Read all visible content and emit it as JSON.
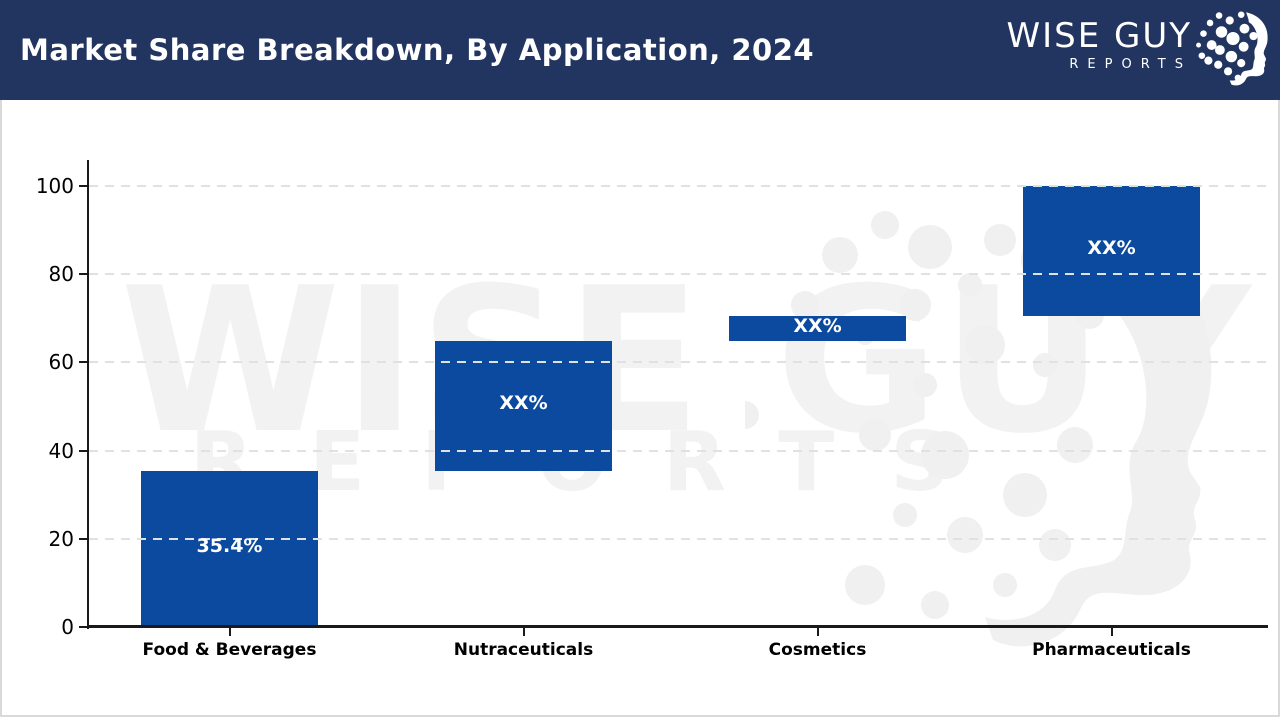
{
  "header": {
    "title": "Market Share Breakdown, By Application, 2024",
    "bg_color": "#223460",
    "logo": {
      "line1": "WISE GUY",
      "line2": "REPORTS"
    }
  },
  "watermark": {
    "line1": "WISE GUY",
    "line2": "REPORTS"
  },
  "chart_data": {
    "type": "bar",
    "subtype": "waterfall",
    "title": "Market Share Breakdown, By Application, 2024",
    "categories": [
      "Food & Beverages",
      "Nutraceuticals",
      "Cosmetics",
      "Pharmaceuticals"
    ],
    "segments": [
      {
        "category": "Food & Beverages",
        "start": 0,
        "end": 35.4,
        "value": 35.4,
        "label": "35.4%"
      },
      {
        "category": "Nutraceuticals",
        "start": 35.4,
        "end": 64.8,
        "value": 29.4,
        "label": "XX%"
      },
      {
        "category": "Cosmetics",
        "start": 64.8,
        "end": 70.5,
        "value": 5.7,
        "label": "XX%"
      },
      {
        "category": "Pharmaceuticals",
        "start": 70.5,
        "end": 100,
        "value": 29.5,
        "label": "XX%"
      }
    ],
    "yticks": [
      0,
      20,
      40,
      60,
      80,
      100
    ],
    "ylim": [
      0,
      105
    ],
    "xlabel": "",
    "ylabel": "",
    "legend": "none",
    "grid": "horizontal-dashed",
    "grid_color": "#e1e1e1",
    "bar_color": "#0b4a9e",
    "label_color": "#ffffff",
    "axis_color": "#1a1a1a"
  }
}
